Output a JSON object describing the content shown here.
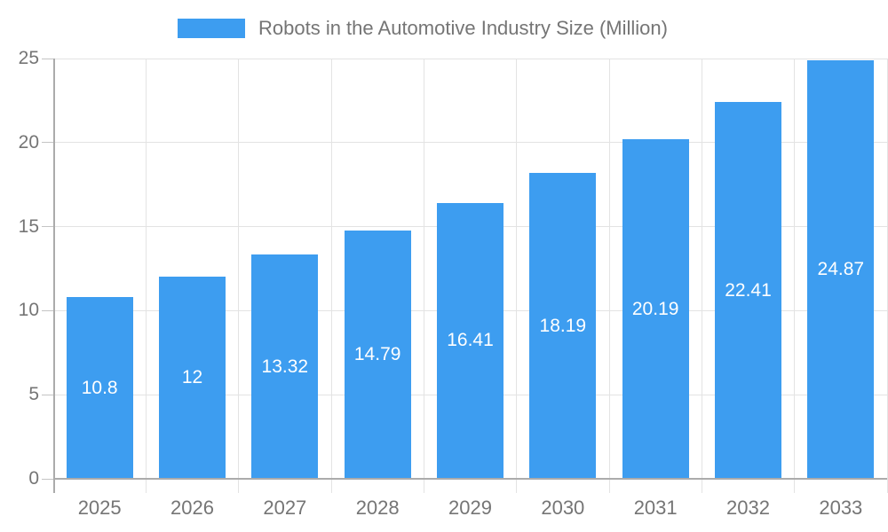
{
  "chart_data": {
    "type": "bar",
    "title": "Robots in the Automotive Industry Size (Million)",
    "legend_position": "top",
    "legend_entries": [
      "Robots in the Automotive Industry Size (Million)"
    ],
    "categories": [
      "2025",
      "2026",
      "2027",
      "2028",
      "2029",
      "2030",
      "2031",
      "2032",
      "2033"
    ],
    "series": [
      {
        "name": "Robots in the Automotive Industry Size (Million)",
        "values": [
          10.8,
          12,
          13.32,
          14.79,
          16.41,
          18.19,
          20.19,
          22.41,
          24.87
        ]
      }
    ],
    "value_labels": [
      "10.8",
      "12",
      "13.32",
      "14.79",
      "16.41",
      "18.19",
      "20.19",
      "22.41",
      "24.87"
    ],
    "xlabel": "",
    "ylabel": "",
    "ylim": [
      0,
      25
    ],
    "yticks": [
      0,
      5,
      10,
      15,
      20,
      25
    ],
    "grid": true,
    "colors": {
      "bar": "#3d9df0",
      "value_label": "#ffffff",
      "axis_label": "#757575",
      "axis_line": "#ababab",
      "gridline": "#e3e3e3",
      "tick": "#c4c4c4",
      "background": "#ffffff"
    }
  }
}
